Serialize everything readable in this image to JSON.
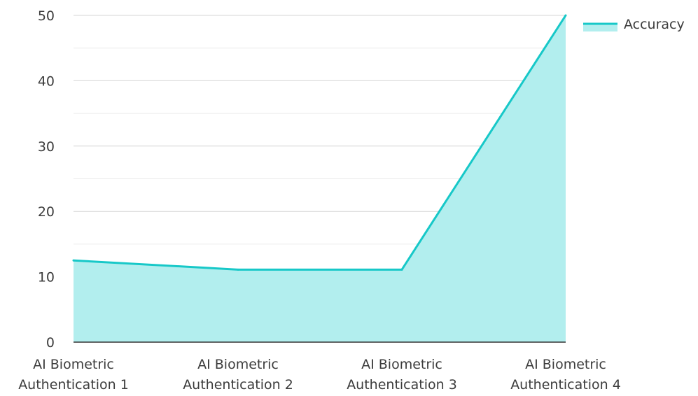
{
  "chart_data": {
    "type": "area",
    "categories": [
      [
        "AI Biometric",
        "Authentication 1"
      ],
      [
        "AI Biometric",
        "Authentication 2"
      ],
      [
        "AI Biometric",
        "Authentication 3"
      ],
      [
        "AI Biometric",
        "Authentication 4"
      ]
    ],
    "series": [
      {
        "name": "Accuracy",
        "values": [
          12.5,
          11.1,
          11.1,
          50
        ]
      }
    ],
    "ylim": [
      0,
      50
    ],
    "yticks": [
      0,
      10,
      20,
      30,
      40,
      50
    ],
    "grid": true,
    "legend_position": "top-right",
    "colors": {
      "line": "#17C8C8",
      "fill": "#B2EEEE",
      "grid_major": "#d4d4d4",
      "grid_minor": "#ececec",
      "axis": "#333333"
    }
  }
}
